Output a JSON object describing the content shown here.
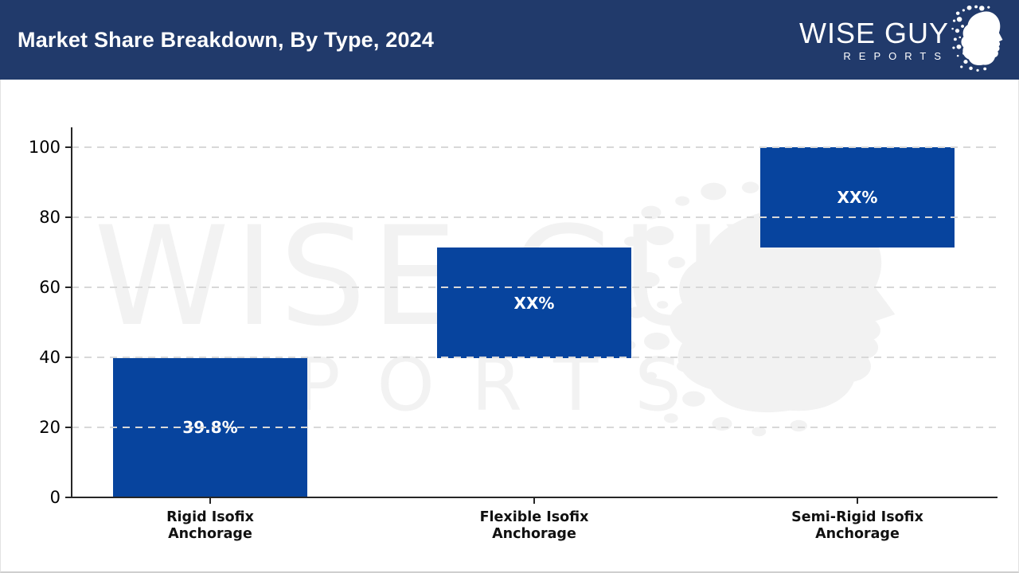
{
  "header": {
    "title": "Market Share Breakdown, By Type, 2024",
    "logo_line1": "WISE GUY",
    "logo_line2": "REPORTS"
  },
  "watermark": {
    "line1": "WISE GUY",
    "line2": "REPORTS"
  },
  "colors": {
    "header_bg": "#213a6b",
    "bar": "#07449e",
    "grid": "#d8d8d8",
    "axis": "#262626",
    "bar_label": "#ffffff",
    "watermark": "#f2f2f2"
  },
  "chart_data": {
    "type": "bar",
    "subtype": "stacked-waterfall-percent",
    "title": "Market Share Breakdown, By Type, 2024",
    "categories": [
      [
        "Rigid Isofix",
        "Anchorage"
      ],
      [
        "Flexible Isofix",
        "Anchorage"
      ],
      [
        "Semi-Rigid Isofix",
        "Anchorage"
      ]
    ],
    "series": [
      {
        "name": "Rigid Isofix Anchorage",
        "start": 0,
        "end": 39.8,
        "label": "39.8%"
      },
      {
        "name": "Flexible Isofix Anchorage",
        "start": 39.8,
        "end": 71.3,
        "label": "XX%"
      },
      {
        "name": "Semi-Rigid Isofix Anchorage",
        "start": 71.3,
        "end": 100,
        "label": "XX%"
      }
    ],
    "ylim": [
      0,
      100
    ],
    "yticks": [
      0,
      20,
      40,
      60,
      80,
      100
    ],
    "xlabel": "",
    "ylabel": "",
    "grid": "horizontal-dashed",
    "legend": "none"
  }
}
